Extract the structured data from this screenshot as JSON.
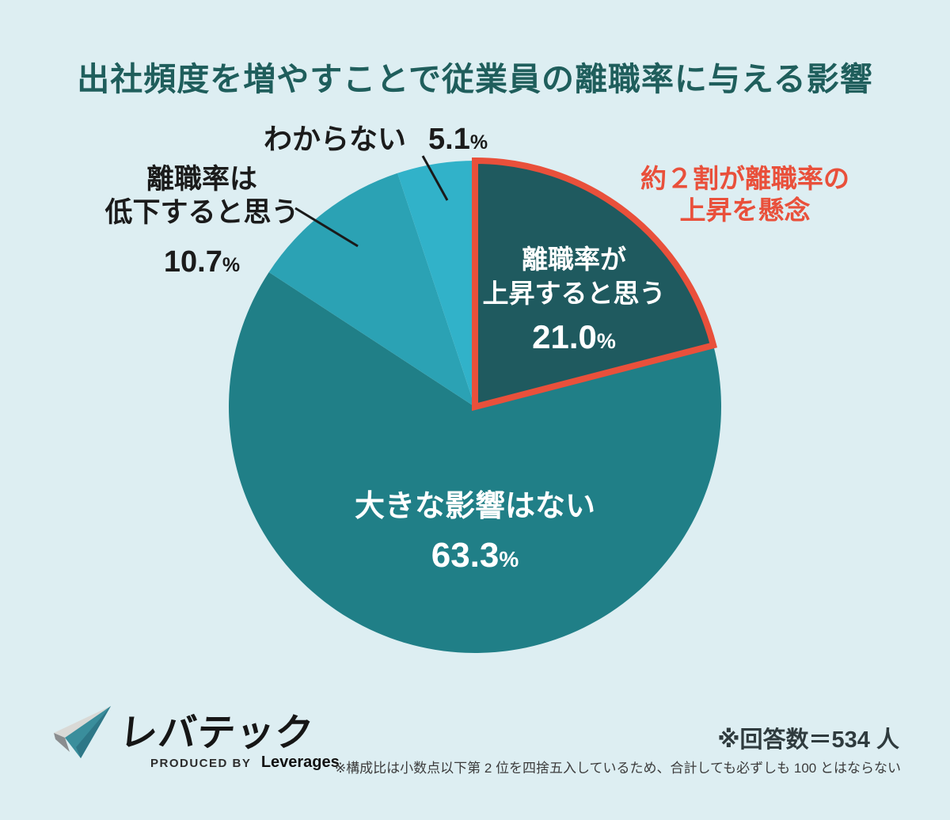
{
  "title": "出社頻度を増やすことで従業員の離職率に与える影響",
  "ui": {
    "percent_sign": "%"
  },
  "colors": {
    "background": "#ddeef2",
    "title": "#1f5e5c",
    "accent_red": "#e9503b",
    "leader_line": "#1a1a1a",
    "label_text": "#1b1b1b",
    "wedge_text": "#ffffff"
  },
  "chart_data": {
    "type": "pie",
    "title": "出社頻度を増やすことで従業員の離職率に与える影響",
    "legend_position": "none",
    "start_angle_deg": 0,
    "direction": "clockwise",
    "slices": [
      {
        "id": "rise",
        "label": "離職率が上昇すると思う",
        "label_lines": [
          "離職率が",
          "上昇すると思う"
        ],
        "value": 21.0,
        "value_str": "21.0",
        "color": "#1f5a5f",
        "highlight": true
      },
      {
        "id": "no-impact",
        "label": "大きな影響はない",
        "label_lines": [
          "大きな影響はない"
        ],
        "value": 63.3,
        "value_str": "63.3",
        "color": "#207f87",
        "highlight": false
      },
      {
        "id": "decline",
        "label": "離職率は低下すると思う",
        "label_lines": [
          "離職率は",
          "低下すると思う"
        ],
        "value": 10.7,
        "value_str": "10.7",
        "color": "#2ba2b4",
        "highlight": false
      },
      {
        "id": "unknown",
        "label": "わからない",
        "label_lines": [
          "わからない"
        ],
        "value": 5.1,
        "value_str": "5.1",
        "color": "#31b2c9",
        "highlight": false
      }
    ],
    "annotation": {
      "lines": [
        "約２割が離職率の",
        "上昇を懸念"
      ],
      "color": "#e9503b"
    }
  },
  "footer": {
    "logo": {
      "brand": "レバテック",
      "produced_by": "PRODUCED BY",
      "company": "Leverages"
    },
    "respondents": "※回答数＝534 人",
    "note": "※構成比は小数点以下第 2 位を四捨五入しているため、合計しても必ずしも 100 とはならない"
  }
}
